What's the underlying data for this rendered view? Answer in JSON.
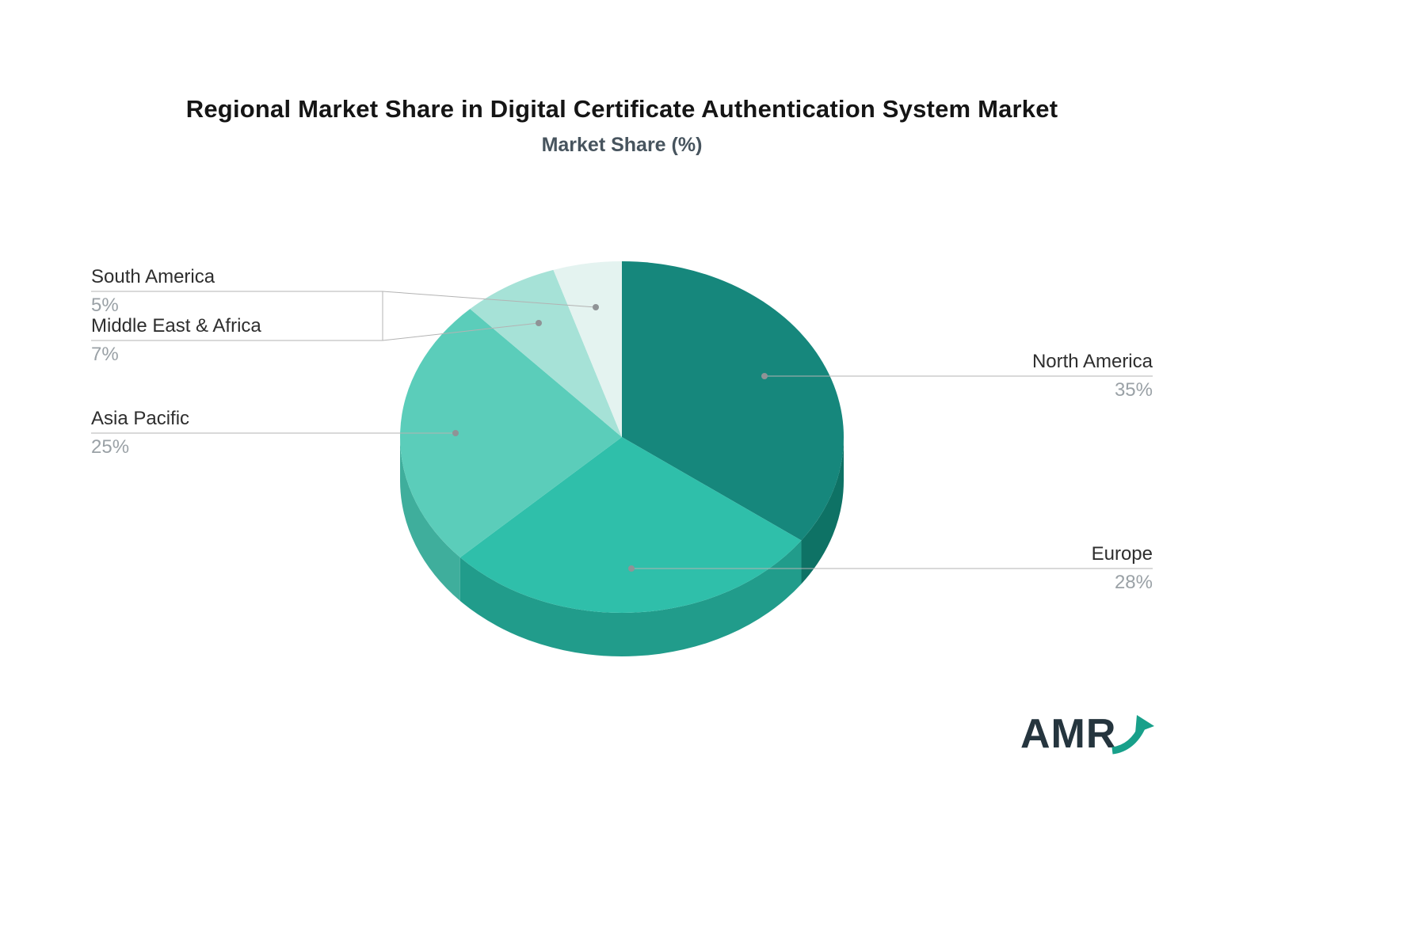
{
  "title": "Regional Market Share in Digital Certificate Authentication System Market",
  "subtitle": "Market Share (%)",
  "logo": {
    "text": "AMR"
  },
  "chart_data": {
    "type": "pie",
    "title": "Regional Market Share in Digital Certificate Authentication System Market",
    "subtitle": "Market Share (%)",
    "unit": "%",
    "categories": [
      "North America",
      "Europe",
      "Asia Pacific",
      "Middle East & Africa",
      "South America"
    ],
    "values": [
      35,
      28,
      25,
      7,
      5
    ],
    "value_labels": [
      "35%",
      "28%",
      "25%",
      "7%",
      "5%"
    ],
    "colors": [
      "#16877C",
      "#2FBFAA",
      "#5BCDBA",
      "#A6E2D7",
      "#E4F3F0"
    ],
    "side_colors": [
      "#0E7265",
      "#219C8B",
      "#3FAE9C",
      "#8CCFC4",
      "#CBE6E1"
    ],
    "start_angle_deg": 0,
    "direction": "clockwise",
    "style": "pie-3d",
    "legend_position": "none",
    "leader_line_color": "#b3b3b3",
    "leader_dot_color": "#8f9396"
  }
}
